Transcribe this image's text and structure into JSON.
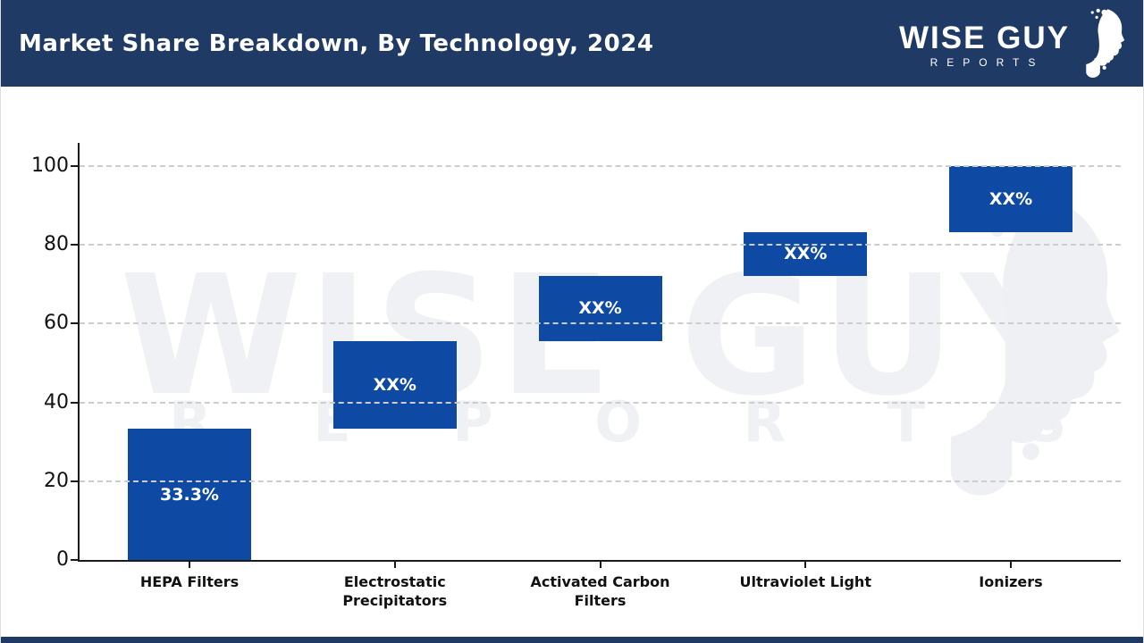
{
  "header": {
    "title": "Market Share Breakdown, By Technology, 2024",
    "logo": {
      "line1": "WISE GUY",
      "line2": "REPORTS",
      "icon": "wiseguy-face-logo"
    }
  },
  "watermark": {
    "line1": "WISE GUY",
    "line2": "R E P O R T S",
    "icon": "wiseguy-face-watermark"
  },
  "colors": {
    "header_bg": "#203A66",
    "bar": "#0E4AA3",
    "grid": "#CDCDCD",
    "axis": "#1A1A1A",
    "bar_label": "#FFFFFF",
    "watermark": "#F0F1F4"
  },
  "chart_data": {
    "type": "bar",
    "subtype": "waterfall",
    "title": "Market Share Breakdown, By Technology, 2024",
    "xlabel": "",
    "ylabel": "",
    "ylim": [
      0,
      106
    ],
    "y_ticks": [
      0,
      20,
      40,
      60,
      80,
      100
    ],
    "grid": "horizontal-dashed",
    "legend": "none",
    "categories": [
      "HEPA Filters",
      "Electrostatic\nPrecipitators",
      "Activated Carbon\nFilters",
      "Ultraviolet Light",
      "Ionizers"
    ],
    "segments": [
      {
        "category": "HEPA Filters",
        "start": 0,
        "end": 33.3,
        "value": 33.3,
        "label": "33.3%"
      },
      {
        "category": "Electrostatic\nPrecipitators",
        "start": 33.3,
        "end": 55.5,
        "value": 22.2,
        "label": "XX%"
      },
      {
        "category": "Activated Carbon\nFilters",
        "start": 55.5,
        "end": 72.2,
        "value": 16.7,
        "label": "XX%"
      },
      {
        "category": "Ultraviolet Light",
        "start": 72.2,
        "end": 83.3,
        "value": 11.1,
        "label": "XX%"
      },
      {
        "category": "Ionizers",
        "start": 83.3,
        "end": 100,
        "value": 16.7,
        "label": "XX%"
      }
    ]
  }
}
